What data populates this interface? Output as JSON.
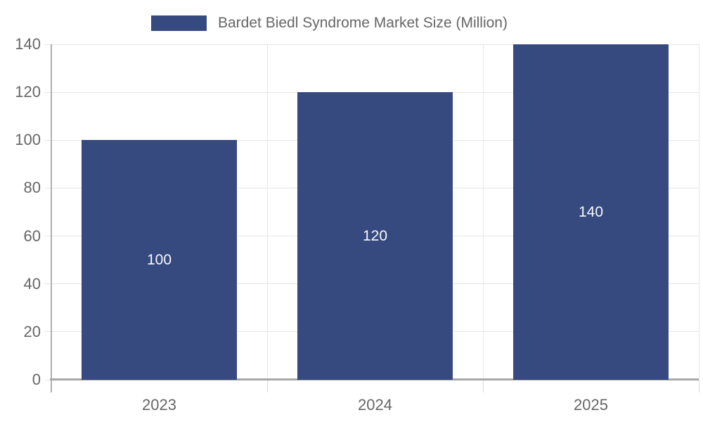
{
  "chart_data": {
    "type": "bar",
    "title": "Bardet Biedl Syndrome Market Size (Million)",
    "categories": [
      "2023",
      "2024",
      "2025"
    ],
    "values": [
      100,
      120,
      140
    ],
    "series": [
      {
        "name": "Bardet Biedl Syndrome Market Size (Million)",
        "values": [
          100,
          120,
          140
        ]
      }
    ],
    "xlabel": "",
    "ylabel": "",
    "ylim": [
      0,
      140
    ],
    "yticks": [
      0,
      20,
      40,
      60,
      80,
      100,
      120,
      140
    ],
    "grid": true,
    "legend_position": "top",
    "data_labels": true
  },
  "theme": {
    "bar_color": "#364a80",
    "grid_color": "#e6e6e6",
    "axis_color": "#b0b0b0",
    "tick_text_color": "#666666",
    "data_label_color": "#f8f8f8",
    "background_color": "#ffffff"
  }
}
